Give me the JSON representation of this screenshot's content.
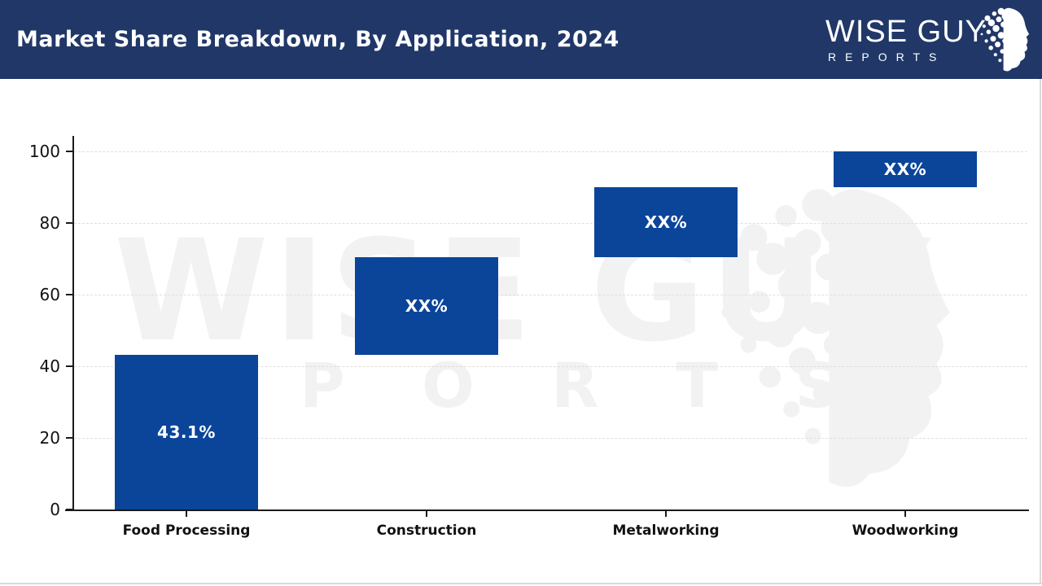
{
  "header": {
    "title": "Market Share Breakdown, By Application, 2024",
    "logo": {
      "line1": "WISE GUY",
      "line2": "REPORTS"
    }
  },
  "watermark": {
    "line1": "WISE GUY",
    "line2": "P O R T S"
  },
  "chart_data": {
    "type": "bar",
    "subtype": "waterfall",
    "title": "Market Share Breakdown, By Application, 2024",
    "categories": [
      "Food Processing",
      "Construction",
      "Metalworking",
      "Woodworking"
    ],
    "bars": [
      {
        "category": "Food Processing",
        "start": 0,
        "end": 43.1,
        "label": "43.1%"
      },
      {
        "category": "Construction",
        "start": 43.1,
        "end": 70.5,
        "label": "XX%"
      },
      {
        "category": "Metalworking",
        "start": 70.5,
        "end": 90,
        "label": "XX%"
      },
      {
        "category": "Woodworking",
        "start": 90,
        "end": 100,
        "label": "XX%"
      }
    ],
    "yticks": [
      0,
      20,
      40,
      60,
      80,
      100
    ],
    "ylim": [
      0,
      105
    ],
    "xlabel": "",
    "ylabel": "",
    "grid": "horizontal-dashed",
    "legend": "none",
    "bar_color": "#0b459a",
    "bar_label_color": "#ffffff"
  },
  "colors": {
    "header_bg": "#203768",
    "bar": "#0b459a",
    "axis": "#1a1a1a",
    "gridline": "#dfdfdf",
    "watermark": "#f2f2f2"
  }
}
